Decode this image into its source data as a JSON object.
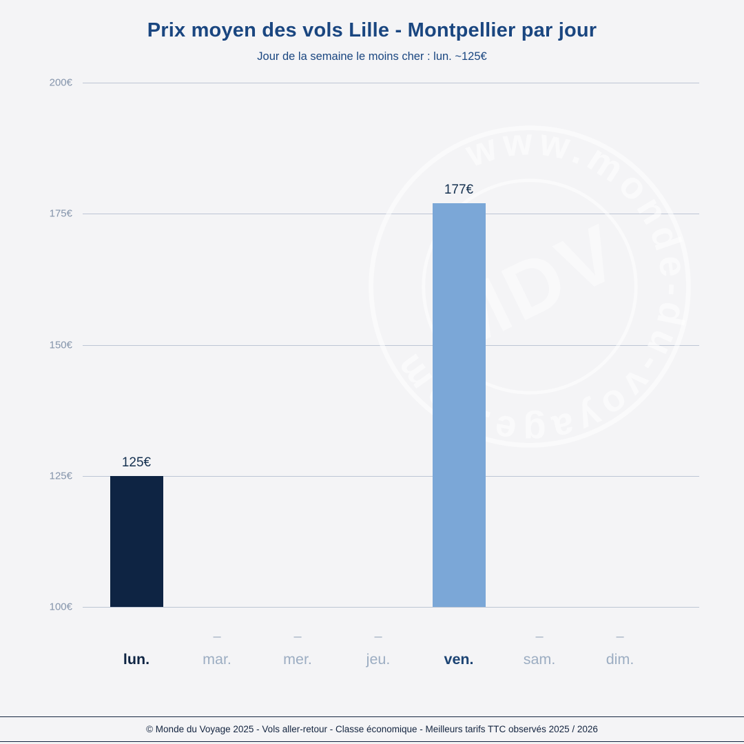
{
  "page": {
    "title": "Prix moyen des vols Lille - Montpellier par jour",
    "subtitle": "Jour de la semaine le moins cher : lun. ~125€",
    "footer": "© Monde du Voyage 2025 - Vols aller-retour - Classe économique - Meilleurs tarifs TTC observés 2025 / 2026",
    "watermark": {
      "ring_text": "www.monde-du-voyage.com",
      "center_text": "MDV"
    }
  },
  "chart_data": {
    "type": "bar",
    "title": "Prix moyen des vols Lille - Montpellier par jour",
    "subtitle": "Jour de la semaine le moins cher : lun. ~125€",
    "categories": [
      "lun.",
      "mar.",
      "mer.",
      "jeu.",
      "ven.",
      "sam.",
      "dim."
    ],
    "values": [
      125,
      null,
      null,
      null,
      177,
      null,
      null
    ],
    "value_labels": [
      "125€",
      null,
      null,
      null,
      "177€",
      null,
      null
    ],
    "missing_marker": "–",
    "currency": "€",
    "ylim": [
      100,
      200
    ],
    "yticks": [
      100,
      125,
      150,
      175,
      200
    ],
    "ytick_labels": [
      "100€",
      "125€",
      "150€",
      "175€",
      "200€"
    ],
    "grid": true,
    "legend": false,
    "bar_colors": [
      "#0e2443",
      null,
      null,
      null,
      "#7ba7d7",
      null,
      null
    ],
    "category_colors": [
      "#0e2443",
      "#9cadc2",
      "#9cadc2",
      "#9cadc2",
      "#1b4373",
      "#9cadc2",
      "#9cadc2"
    ],
    "colors": {
      "grid": "#bcc5d4",
      "axis_label": "#8494ab",
      "title": "#1a4680",
      "value_label": "#14304f",
      "footer": "#13243f"
    }
  }
}
